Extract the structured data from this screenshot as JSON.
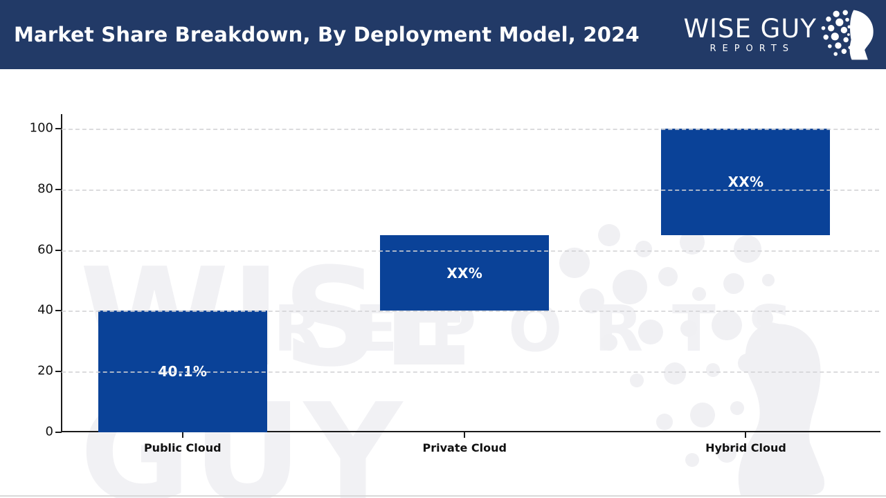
{
  "header": {
    "title": "Market Share Breakdown, By Deployment Model, 2024",
    "logo": {
      "line1": "WISE GUY",
      "line2": "REPORTS"
    }
  },
  "watermark": {
    "line1": "WISE GUY",
    "line2": "REPORTS"
  },
  "chart_data": {
    "type": "bar",
    "subtype": "waterfall-floating-bars",
    "title": "Market Share Breakdown, By Deployment Model, 2024",
    "categories": [
      "Public Cloud",
      "Private Cloud",
      "Hybrid Cloud"
    ],
    "segments": [
      {
        "category": "Public Cloud",
        "start": 0,
        "end": 40.1,
        "label": "40.1%"
      },
      {
        "category": "Private Cloud",
        "start": 40,
        "end": 65,
        "label": "XX%"
      },
      {
        "category": "Hybrid Cloud",
        "start": 65,
        "end": 100,
        "label": "XX%"
      }
    ],
    "xlabel": "",
    "ylabel": "",
    "ylim": [
      0,
      100
    ],
    "yticks": [
      0,
      20,
      40,
      60,
      80,
      100
    ],
    "grid": "horizontal-dashed",
    "legend": "none",
    "bar_color": "#0A4298",
    "bar_label_color": "#ffffff"
  },
  "colors": {
    "header_bg": "#223A67",
    "bar": "#0A4298",
    "axis": "#1a1a1a",
    "gridline": "#d2d2d4",
    "watermark": "#f1f1f4",
    "bottom_rule": "#d9d9d9"
  }
}
